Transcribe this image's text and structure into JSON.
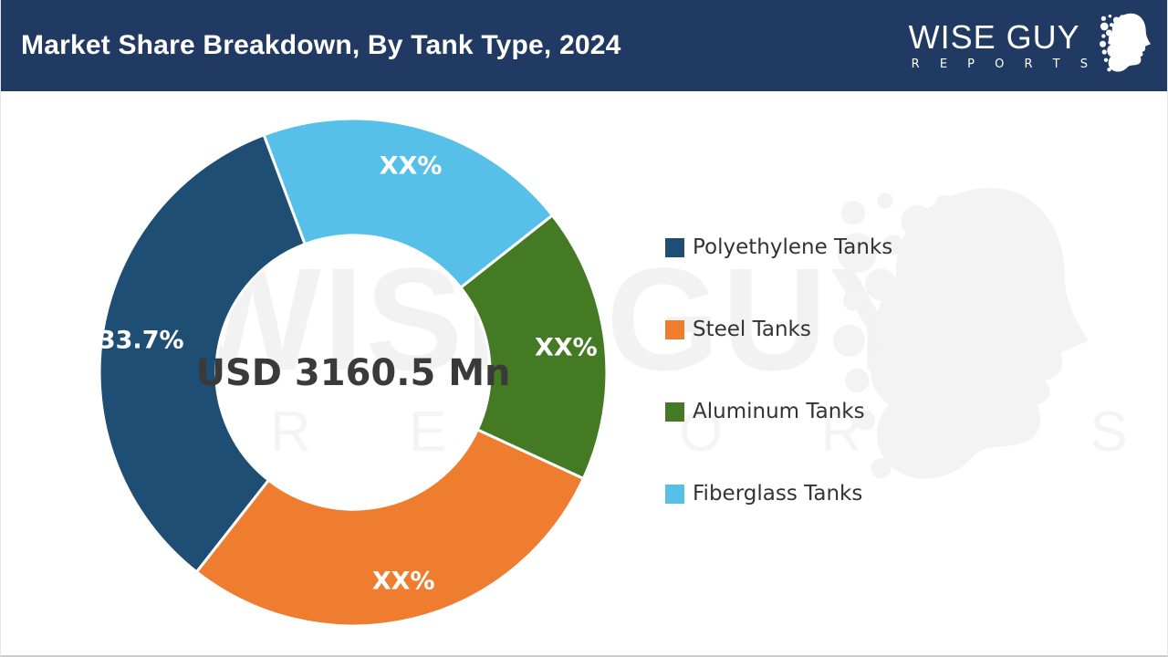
{
  "header": {
    "title": "Market Share Breakdown, By Tank Type, 2024",
    "bg_color": "#203a64",
    "logo": {
      "line1": "WISE GUY",
      "line2": "R E P O R T S"
    }
  },
  "watermark": {
    "line1": "WISE GUY",
    "line2": "R E P O R T S"
  },
  "chart_data": {
    "type": "pie",
    "subtype": "donut",
    "title": "Market Share Breakdown, By Tank Type, 2024",
    "center_label": "USD 3160.5 Mn",
    "start_angle_deg": 339.4,
    "inner_radius_ratio": 0.54,
    "segments": [
      {
        "name": "Fiberglass Tanks",
        "value_pct": 20.1,
        "display_label": "XX%",
        "color": "#56c0e8"
      },
      {
        "name": "Aluminum Tanks",
        "value_pct": 17.5,
        "display_label": "XX%",
        "color": "#447a24"
      },
      {
        "name": "Steel Tanks",
        "value_pct": 28.7,
        "display_label": "XX%",
        "color": "#ee7d2f"
      },
      {
        "name": "Polyethylene Tanks",
        "value_pct": 33.7,
        "display_label": "33.7%",
        "color": "#1f4e74"
      }
    ]
  },
  "legend": {
    "items": [
      {
        "label": "Polyethylene Tanks",
        "color": "#1f4e74"
      },
      {
        "label": "Steel Tanks",
        "color": "#ee7d2f"
      },
      {
        "label": "Aluminum Tanks",
        "color": "#447a24"
      },
      {
        "label": "Fiberglass Tanks",
        "color": "#56c0e8"
      }
    ]
  }
}
